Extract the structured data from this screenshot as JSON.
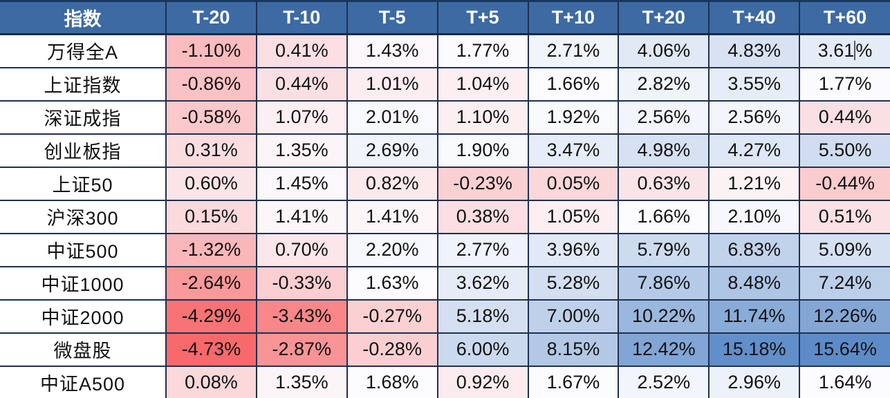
{
  "chart_data": {
    "type": "heatmap",
    "description": "Index returns heat-mapped table around event day T (event study window)",
    "columns": [
      "指数",
      "T-20",
      "T-10",
      "T-5",
      "T+5",
      "T+10",
      "T+20",
      "T+40",
      "T+60"
    ],
    "rows": [
      {
        "label": "万得全A",
        "cells": [
          "-1.10%",
          "0.41%",
          "1.43%",
          "1.77%",
          "2.71%",
          "4.06%",
          "4.83%",
          "3.61%"
        ],
        "values": [
          -1.1,
          0.41,
          1.43,
          1.77,
          2.71,
          4.06,
          4.83,
          3.61
        ]
      },
      {
        "label": "上证指数",
        "cells": [
          "-0.86%",
          "0.44%",
          "1.01%",
          "1.04%",
          "1.66%",
          "2.82%",
          "3.55%",
          "1.77%"
        ],
        "values": [
          -0.86,
          0.44,
          1.01,
          1.04,
          1.66,
          2.82,
          3.55,
          1.77
        ]
      },
      {
        "label": "深证成指",
        "cells": [
          "-0.58%",
          "1.07%",
          "2.01%",
          "1.10%",
          "1.92%",
          "2.56%",
          "2.56%",
          "0.44%"
        ],
        "values": [
          -0.58,
          1.07,
          2.01,
          1.1,
          1.92,
          2.56,
          2.56,
          0.44
        ]
      },
      {
        "label": "创业板指",
        "cells": [
          "0.31%",
          "1.35%",
          "2.69%",
          "1.90%",
          "3.47%",
          "4.98%",
          "4.27%",
          "5.50%"
        ],
        "values": [
          0.31,
          1.35,
          2.69,
          1.9,
          3.47,
          4.98,
          4.27,
          5.5
        ]
      },
      {
        "label": "上证50",
        "cells": [
          "0.60%",
          "1.45%",
          "0.82%",
          "-0.23%",
          "0.05%",
          "0.63%",
          "1.21%",
          "-0.44%"
        ],
        "values": [
          0.6,
          1.45,
          0.82,
          -0.23,
          0.05,
          0.63,
          1.21,
          -0.44
        ]
      },
      {
        "label": "沪深300",
        "cells": [
          "0.15%",
          "1.41%",
          "1.41%",
          "0.38%",
          "1.05%",
          "1.66%",
          "2.10%",
          "0.51%"
        ],
        "values": [
          0.15,
          1.41,
          1.41,
          0.38,
          1.05,
          1.66,
          2.1,
          0.51
        ]
      },
      {
        "label": "中证500",
        "cells": [
          "-1.32%",
          "0.70%",
          "2.20%",
          "2.77%",
          "3.96%",
          "5.79%",
          "6.83%",
          "5.09%"
        ],
        "values": [
          -1.32,
          0.7,
          2.2,
          2.77,
          3.96,
          5.79,
          6.83,
          5.09
        ]
      },
      {
        "label": "中证1000",
        "cells": [
          "-2.64%",
          "-0.33%",
          "1.63%",
          "3.62%",
          "5.28%",
          "7.86%",
          "8.48%",
          "7.24%"
        ],
        "values": [
          -2.64,
          -0.33,
          1.63,
          3.62,
          5.28,
          7.86,
          8.48,
          7.24
        ]
      },
      {
        "label": "中证2000",
        "cells": [
          "-4.29%",
          "-3.43%",
          "-0.27%",
          "5.18%",
          "7.00%",
          "10.22%",
          "11.74%",
          "12.26%"
        ],
        "values": [
          -4.29,
          -3.43,
          -0.27,
          5.18,
          7.0,
          10.22,
          11.74,
          12.26
        ]
      },
      {
        "label": "微盘股",
        "cells": [
          "-4.73%",
          "-2.87%",
          "-0.28%",
          "6.00%",
          "8.15%",
          "12.42%",
          "15.18%",
          "15.64%"
        ],
        "values": [
          -4.73,
          -2.87,
          -0.28,
          6.0,
          8.15,
          12.42,
          15.18,
          15.64
        ]
      },
      {
        "label": "中证A500",
        "cells": [
          "0.08%",
          "1.35%",
          "1.68%",
          "0.92%",
          "1.67%",
          "2.52%",
          "2.96%",
          "1.64%"
        ],
        "values": [
          0.08,
          1.35,
          1.68,
          0.92,
          1.67,
          2.52,
          2.96,
          1.64
        ]
      }
    ],
    "colorscale": {
      "min_value": -4.73,
      "mid_value": 1.665,
      "max_value": 15.64,
      "min_color": "#F8696B",
      "mid_color": "#FCFCFF",
      "max_color": "#5C8BC8"
    },
    "layout_hints": {
      "grid": "on",
      "legend": "none",
      "value_format": "percent_2dp"
    }
  },
  "colors": {
    "header_bg": "#3D6AA3",
    "header_text": "#FFFFFF",
    "border_outer": "#17375E",
    "border_inner": "#1E2F50",
    "body_text": "#111111",
    "label_bg": "#FFFFFF"
  },
  "text_cursor": {
    "row_index": 0,
    "col_index": 7,
    "before": "3.61",
    "after": "%"
  }
}
